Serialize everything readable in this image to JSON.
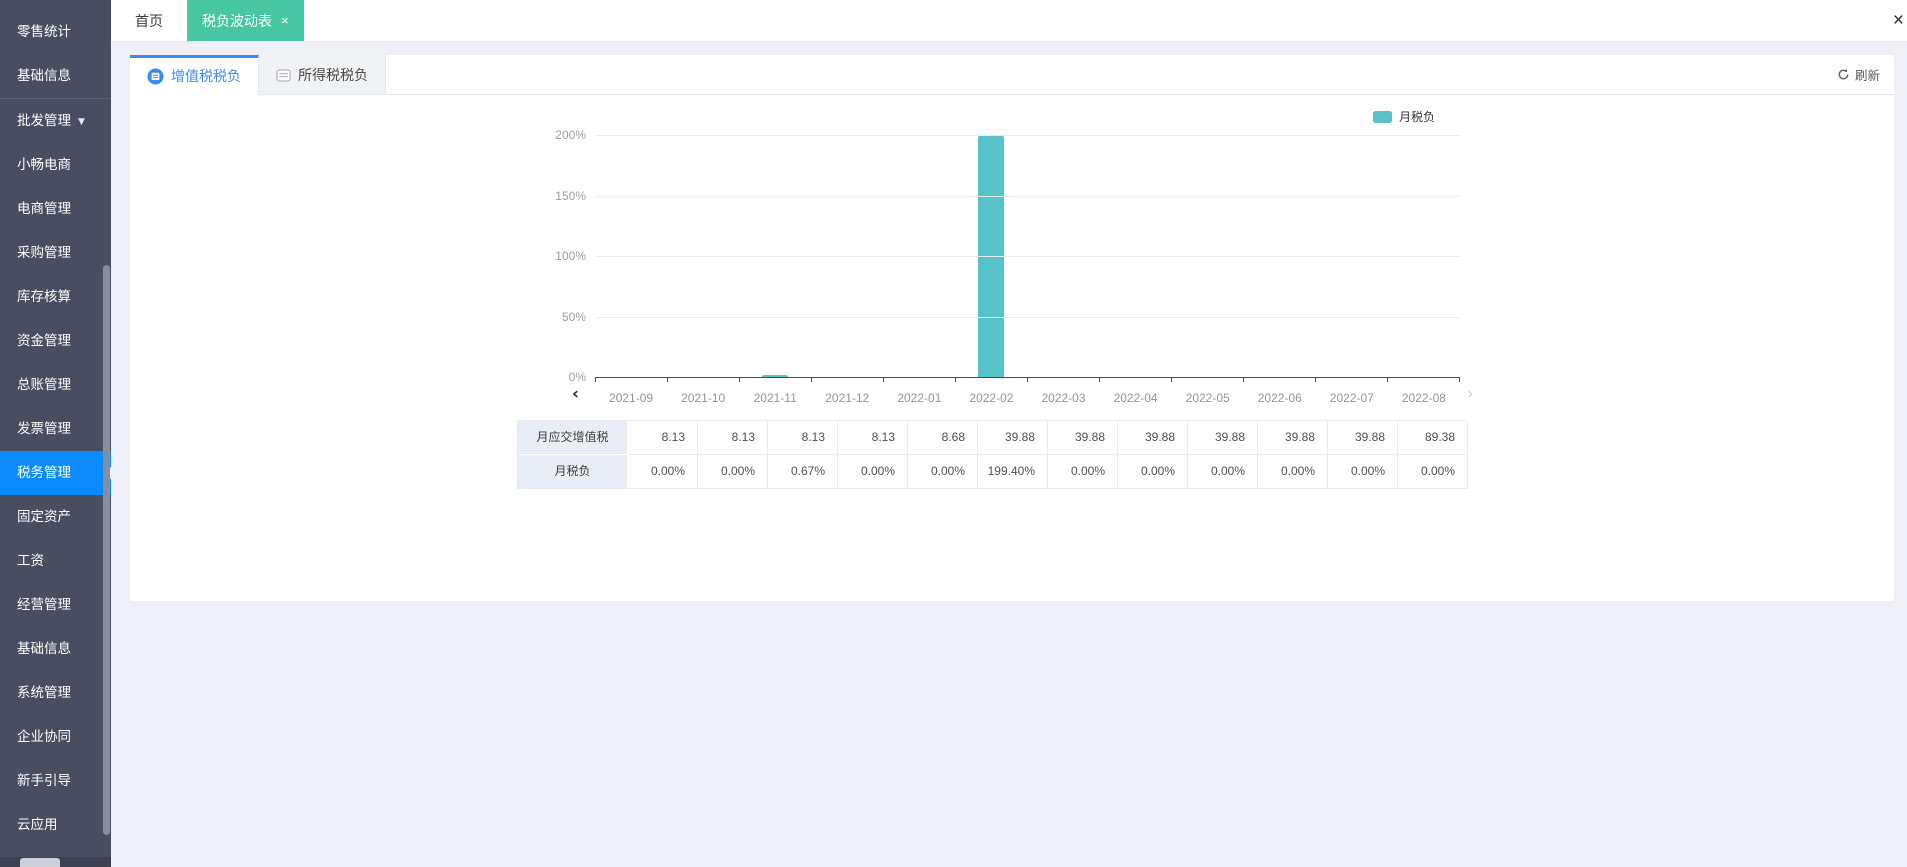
{
  "window": {
    "close_label": "×"
  },
  "sidebar": {
    "items": [
      {
        "label": "零售统计"
      },
      {
        "label": "基础信息",
        "divider_after": true
      },
      {
        "label": "批发管理",
        "arrow": "▼"
      },
      {
        "label": "小畅电商"
      },
      {
        "label": "电商管理"
      },
      {
        "label": "采购管理"
      },
      {
        "label": "库存核算"
      },
      {
        "label": "资金管理"
      },
      {
        "label": "总账管理"
      },
      {
        "label": "发票管理"
      },
      {
        "label": "税务管理",
        "active": true
      },
      {
        "label": "固定资产"
      },
      {
        "label": "工资"
      },
      {
        "label": "经营管理"
      },
      {
        "label": "基础信息"
      },
      {
        "label": "系统管理"
      },
      {
        "label": "企业协同"
      },
      {
        "label": "新手引导"
      },
      {
        "label": "云应用"
      }
    ]
  },
  "tabbar": {
    "home_label": "首页",
    "active_tab_label": "税负波动表",
    "active_tab_close": "×"
  },
  "panel": {
    "tab_vat": "增值税税负",
    "tab_income": "所得税税负",
    "refresh_label": "刷新"
  },
  "chart_data": {
    "type": "bar",
    "title": "",
    "categories": [
      "2021-09",
      "2021-10",
      "2021-11",
      "2021-12",
      "2022-01",
      "2022-02",
      "2022-03",
      "2022-04",
      "2022-05",
      "2022-06",
      "2022-07",
      "2022-08"
    ],
    "series": [
      {
        "name": "月税负",
        "values": [
          0,
          0,
          0.67,
          0,
          0,
          199.4,
          0,
          0,
          0,
          0,
          0,
          0
        ]
      }
    ],
    "ylim": [
      0,
      200
    ],
    "ytick_labels": [
      "200%",
      "150%",
      "100%",
      "50%",
      "0%"
    ],
    "grid": true,
    "legend_position": "top-right",
    "bar_color": "#58c2cb",
    "nav_prev": "‹",
    "nav_next": "›"
  },
  "table": {
    "rows": [
      {
        "header": "月应交增值税",
        "values": [
          "8.13",
          "8.13",
          "8.13",
          "8.13",
          "8.68",
          "39.88",
          "39.88",
          "39.88",
          "39.88",
          "39.88",
          "39.88",
          "89.38"
        ]
      },
      {
        "header": "月税负",
        "values": [
          "0.00%",
          "0.00%",
          "0.67%",
          "0.00%",
          "0.00%",
          "199.40%",
          "0.00%",
          "0.00%",
          "0.00%",
          "0.00%",
          "0.00%",
          "0.00%"
        ]
      }
    ]
  },
  "colors": {
    "sidebar_bg": "#464e5f",
    "sidebar_active_blue": "#0a8bfe",
    "tab_active_green": "#46c7a2",
    "panel_tab_blue": "#3d8af2",
    "bar_teal": "#58c2cb",
    "table_header_bg": "#e9edf7",
    "content_bg": "#eef0f6"
  }
}
